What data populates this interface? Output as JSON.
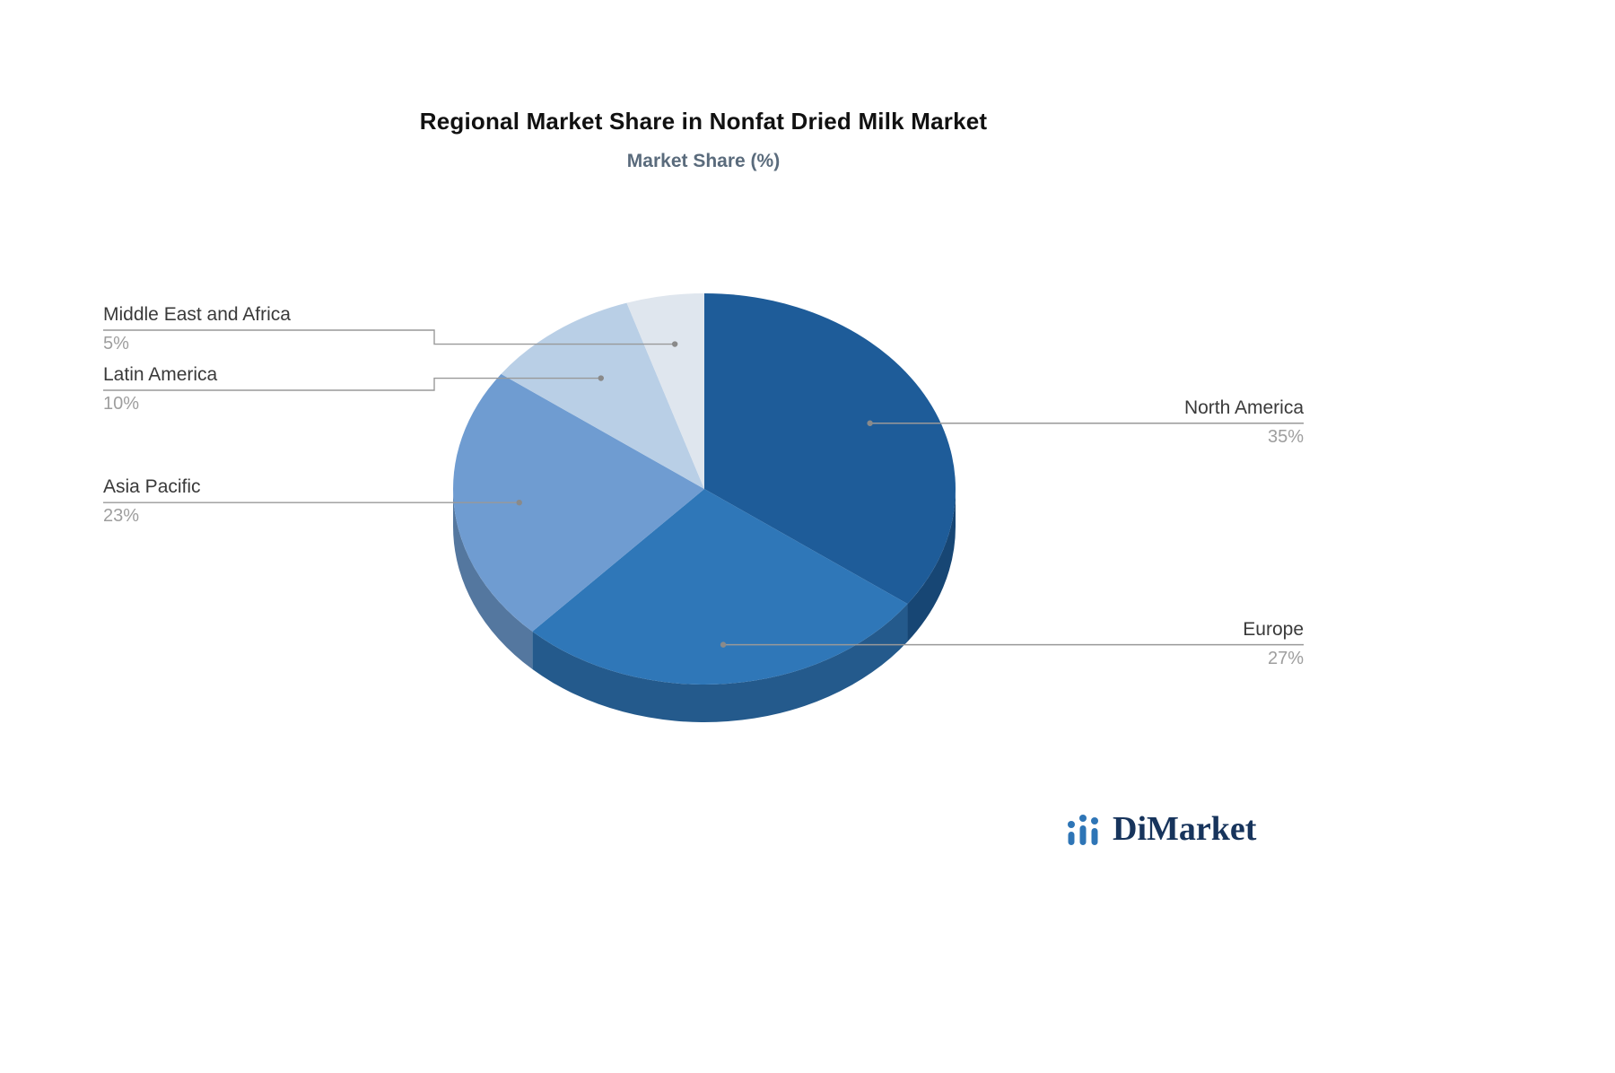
{
  "title": "Regional Market Share in Nonfat Dried Milk Market",
  "subtitle": "Market Share (%)",
  "logo": {
    "text": "DiMarket",
    "icon": "bar-chart-icon",
    "icon_color": "#2e75b6",
    "text_color": "#17345c"
  },
  "chart_data": {
    "type": "pie",
    "title": "Regional Market Share in Nonfat Dried Milk Market",
    "subtitle": "Market Share (%)",
    "unit": "%",
    "effect": "3d",
    "direction": "clockwise",
    "start_angle_deg": 0,
    "labels": [
      "North America",
      "Europe",
      "Asia Pacific",
      "Latin America",
      "Middle East and Africa"
    ],
    "values": [
      35,
      27,
      23,
      10,
      5
    ],
    "value_labels": [
      "35%",
      "27%",
      "23%",
      "10%",
      "5%"
    ],
    "colors": [
      "#1e5c99",
      "#2f77b8",
      "#6f9cd1",
      "#b9cfe6",
      "#dfe6ee"
    ],
    "legend": "leader-line labels with percentages",
    "label_name_color": "#3a3a3a",
    "label_value_color": "#9e9e9e",
    "leader_line_color": "#999999"
  }
}
